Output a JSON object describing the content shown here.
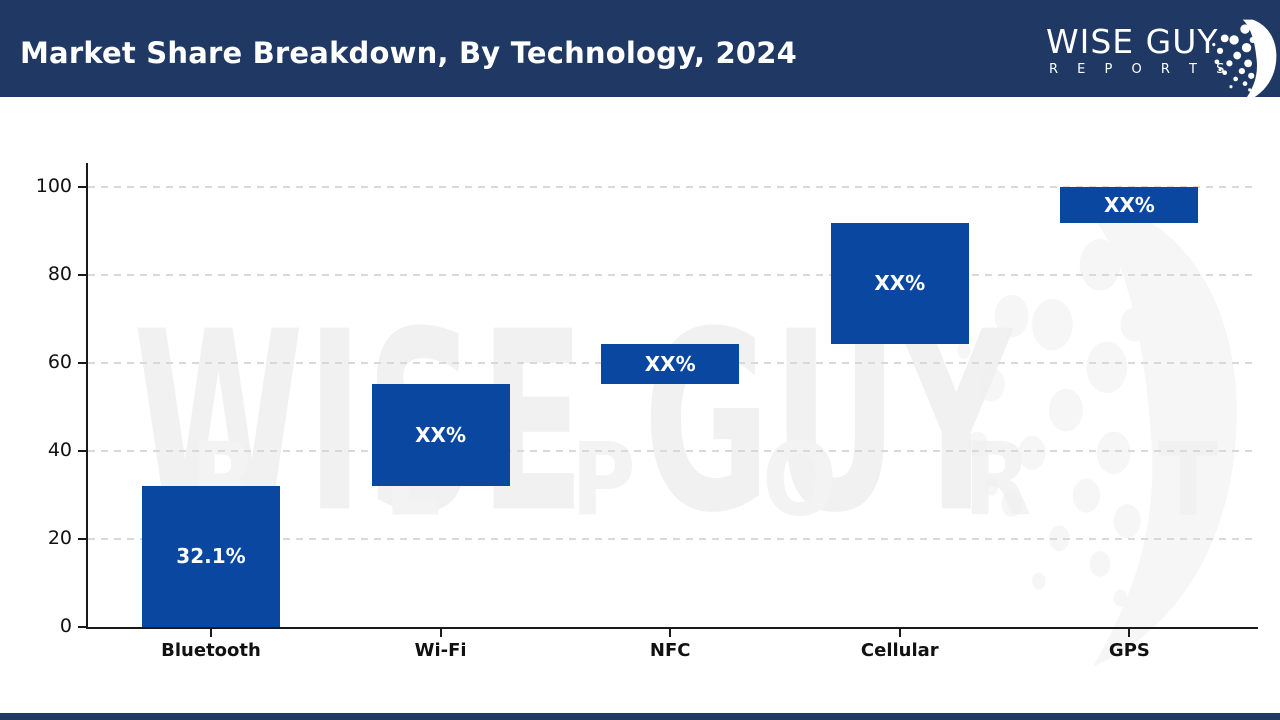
{
  "header": {
    "title": "Market Share Breakdown, By Technology, 2024",
    "brand": {
      "line1": "WISE GUY",
      "line2": "R E P O R T S"
    },
    "bg_color": "#1f3864"
  },
  "watermark": {
    "line1": "WISE GUY",
    "line2": "R E P O R T S"
  },
  "chart_data": {
    "type": "bar",
    "subtype": "waterfall",
    "title": "Market Share Breakdown, By Technology, 2024",
    "xlabel": "",
    "ylabel": "",
    "ylim": [
      0,
      100
    ],
    "yticks": [
      0,
      20,
      40,
      60,
      80,
      100
    ],
    "grid": "horizontal dashed",
    "legend": "none",
    "bar_color": "#0a47a1",
    "bar_label_color": "#ffffff",
    "categories": [
      "Bluetooth",
      "Wi-Fi",
      "NFC",
      "Cellular",
      "GPS"
    ],
    "segments": [
      {
        "category": "Bluetooth",
        "start": 0,
        "end": 32.1,
        "label": "32.1%"
      },
      {
        "category": "Wi-Fi",
        "start": 32.1,
        "end": 55.3,
        "label": "XX%"
      },
      {
        "category": "NFC",
        "start": 55.3,
        "end": 64.3,
        "label": "XX%"
      },
      {
        "category": "Cellular",
        "start": 64.3,
        "end": 91.9,
        "label": "XX%"
      },
      {
        "category": "GPS",
        "start": 91.9,
        "end": 100,
        "label": "XX%"
      }
    ]
  }
}
